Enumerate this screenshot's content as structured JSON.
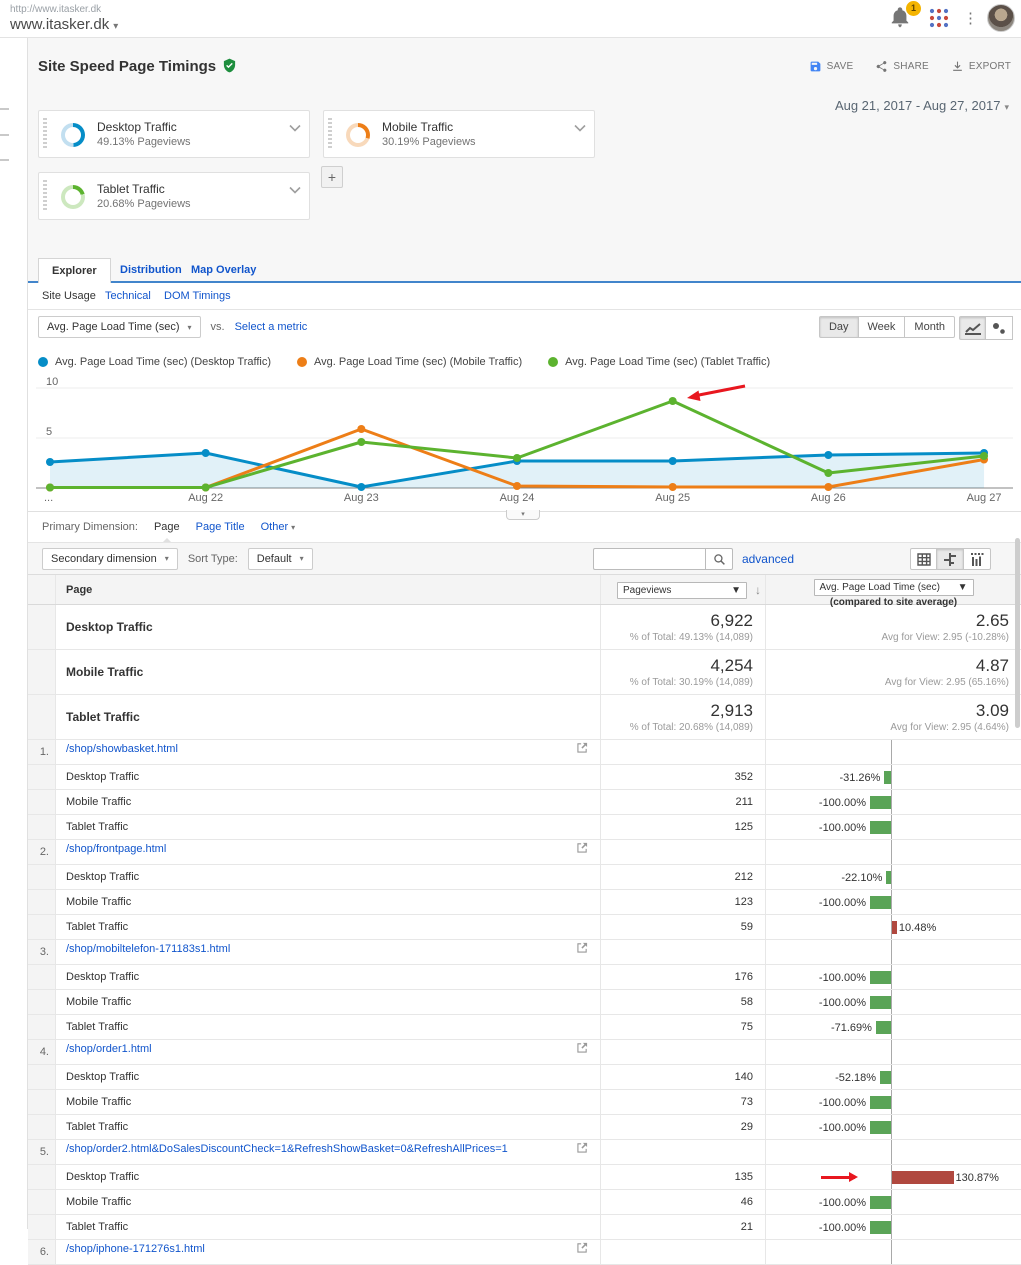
{
  "colors": {
    "desktop_blue": "#058dc7",
    "mobile_orange": "#ed7e17",
    "tablet_green": "#5cb32f",
    "bar_green": "#5aa457",
    "bar_red": "#b0483f",
    "annotation_red": "#e8171f",
    "link_blue": "#1155cc",
    "tab_underline": "#4285cb",
    "badge_yellow": "#f4b400"
  },
  "app_header": {
    "property_url": "http://www.itasker.dk",
    "account_name": "www.itasker.dk",
    "notification_count": "1"
  },
  "report": {
    "title": "Site Speed Page Timings",
    "actions": {
      "save": "SAVE",
      "share": "SHARE",
      "export": "EXPORT"
    },
    "date_range": "Aug 21, 2017 - Aug 27, 2017"
  },
  "segments": [
    {
      "name": "Desktop Traffic",
      "sub": "49.13% Pageviews",
      "pct_value": 49.13,
      "color": "#058dc7",
      "tint": "#c2dff0"
    },
    {
      "name": "Mobile Traffic",
      "sub": "30.19% Pageviews",
      "pct_value": 30.19,
      "color": "#ed7e17",
      "tint": "#f8d9bb"
    },
    {
      "name": "Tablet Traffic",
      "sub": "20.68% Pageviews",
      "pct_value": 20.68,
      "color": "#5cb32f",
      "tint": "#cde8bf"
    }
  ],
  "add_segment_label": "+",
  "tabs": {
    "explorer": "Explorer",
    "distribution": "Distribution",
    "map_overlay": "Map Overlay"
  },
  "subtabs": {
    "site_usage": "Site Usage",
    "technical": "Technical",
    "dom_timings": "DOM Timings"
  },
  "metric_bar": {
    "metric_dropdown": "Avg. Page Load Time (sec)",
    "vs": "vs.",
    "select_metric": "Select a metric",
    "granularity": [
      "Day",
      "Week",
      "Month"
    ],
    "active_granularity": "Day"
  },
  "chart_data": {
    "type": "line",
    "title": "Avg. Page Load Time (sec) by day",
    "x": [
      "Aug 21",
      "Aug 22",
      "Aug 23",
      "Aug 24",
      "Aug 25",
      "Aug 26",
      "Aug 27"
    ],
    "tick_labels": [
      "...",
      "Aug 22",
      "Aug 23",
      "Aug 24",
      "Aug 25",
      "Aug 26",
      "Aug 27"
    ],
    "ylim": [
      0,
      10
    ],
    "yticks": [
      5,
      10
    ],
    "grid": true,
    "legend_position": "top",
    "series": [
      {
        "name": "Avg. Page Load Time (sec) (Desktop Traffic)",
        "color": "#058dc7",
        "area": true,
        "values": [
          2.6,
          3.5,
          0.1,
          2.7,
          2.7,
          3.3,
          3.5
        ]
      },
      {
        "name": "Avg. Page Load Time (sec) (Mobile Traffic)",
        "color": "#ed7e17",
        "area": false,
        "values": [
          0.05,
          0.05,
          5.9,
          0.2,
          0.1,
          0.1,
          2.85
        ]
      },
      {
        "name": "Avg. Page Load Time (sec) (Tablet Traffic)",
        "color": "#5cb32f",
        "area": false,
        "values": [
          0.05,
          0.05,
          4.6,
          3.0,
          8.7,
          1.5,
          3.2
        ]
      }
    ],
    "annotation": "red arrow pointing at Tablet Traffic peak on Aug 25"
  },
  "primary_dimension": {
    "label": "Primary Dimension:",
    "selected": "Page",
    "options": [
      "Page Title",
      "Other"
    ]
  },
  "toolbar": {
    "secondary_dimension": "Secondary dimension",
    "sort_type_label": "Sort Type:",
    "sort_type_value": "Default",
    "search_value": "",
    "advanced": "advanced"
  },
  "table": {
    "columns": {
      "page": "Page",
      "pageviews": "Pageviews",
      "metric": "Avg. Page Load Time (sec)",
      "metric_sub": "(compared to site average)"
    },
    "summary": [
      {
        "label": "Desktop Traffic",
        "pageviews": "6,922",
        "pv_sub": "% of Total: 49.13% (14,089)",
        "metric": "2.65",
        "metric_sub": "Avg for View: 2.95 (-10.28%)"
      },
      {
        "label": "Mobile Traffic",
        "pageviews": "4,254",
        "pv_sub": "% of Total: 30.19% (14,089)",
        "metric": "4.87",
        "metric_sub": "Avg for View: 2.95 (65.16%)"
      },
      {
        "label": "Tablet Traffic",
        "pageviews": "2,913",
        "pv_sub": "% of Total: 20.68% (14,089)",
        "metric": "3.09",
        "metric_sub": "Avg for View: 2.95 (4.64%)"
      }
    ],
    "rows": [
      {
        "index": "1.",
        "url": "/shop/showbasket.html",
        "devices": [
          {
            "label": "Desktop Traffic",
            "pageviews": "352",
            "pct": -31.26,
            "pct_label": "-31.26%"
          },
          {
            "label": "Mobile Traffic",
            "pageviews": "211",
            "pct": -100.0,
            "pct_label": "-100.00%"
          },
          {
            "label": "Tablet Traffic",
            "pageviews": "125",
            "pct": -100.0,
            "pct_label": "-100.00%"
          }
        ]
      },
      {
        "index": "2.",
        "url": "/shop/frontpage.html",
        "devices": [
          {
            "label": "Desktop Traffic",
            "pageviews": "212",
            "pct": -22.1,
            "pct_label": "-22.10%"
          },
          {
            "label": "Mobile Traffic",
            "pageviews": "123",
            "pct": -100.0,
            "pct_label": "-100.00%"
          },
          {
            "label": "Tablet Traffic",
            "pageviews": "59",
            "pct": 10.48,
            "pct_label": "10.48%"
          }
        ]
      },
      {
        "index": "3.",
        "url": "/shop/mobiltelefon-171183s1.html",
        "devices": [
          {
            "label": "Desktop Traffic",
            "pageviews": "176",
            "pct": -100.0,
            "pct_label": "-100.00%"
          },
          {
            "label": "Mobile Traffic",
            "pageviews": "58",
            "pct": -100.0,
            "pct_label": "-100.00%"
          },
          {
            "label": "Tablet Traffic",
            "pageviews": "75",
            "pct": -71.69,
            "pct_label": "-71.69%"
          }
        ]
      },
      {
        "index": "4.",
        "url": "/shop/order1.html",
        "devices": [
          {
            "label": "Desktop Traffic",
            "pageviews": "140",
            "pct": -52.18,
            "pct_label": "-52.18%"
          },
          {
            "label": "Mobile Traffic",
            "pageviews": "73",
            "pct": -100.0,
            "pct_label": "-100.00%"
          },
          {
            "label": "Tablet Traffic",
            "pageviews": "29",
            "pct": -100.0,
            "pct_label": "-100.00%"
          }
        ]
      },
      {
        "index": "5.",
        "url": "/shop/order2.html&DoSalesDiscountCheck=1&RefreshShowBasket=0&RefreshAllPrices=1",
        "devices": [
          {
            "label": "Desktop Traffic",
            "pageviews": "135",
            "pct": 130.87,
            "pct_label": "130.87%",
            "arrow": true
          },
          {
            "label": "Mobile Traffic",
            "pageviews": "46",
            "pct": -100.0,
            "pct_label": "-100.00%"
          },
          {
            "label": "Tablet Traffic",
            "pageviews": "21",
            "pct": -100.0,
            "pct_label": "-100.00%"
          }
        ]
      },
      {
        "index": "6.",
        "url": "/shop/iphone-171276s1.html",
        "devices": []
      }
    ]
  }
}
